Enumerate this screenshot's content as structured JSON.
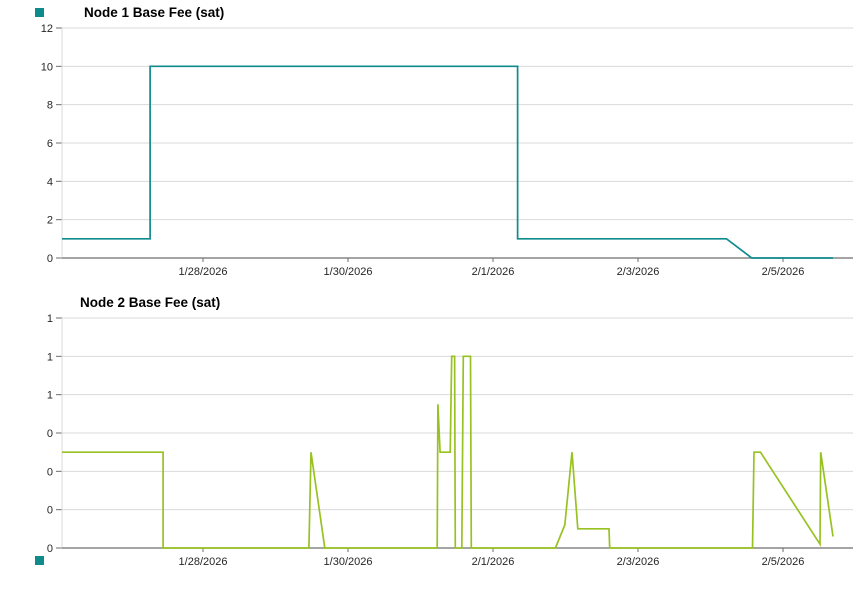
{
  "colors": {
    "node1_line": "#0f8b8c",
    "node2_line": "#98c222",
    "gridline": "#d9d9d9",
    "axis": "#6e6e6e",
    "tick_text": "#262626",
    "title_text": "#000000",
    "background": "#ffffff"
  },
  "chart_data": [
    {
      "type": "line",
      "title": "Node 1 Base Fee (sat)",
      "xlabel": "",
      "ylabel": "",
      "ylim": [
        0,
        12
      ],
      "x_unit": "days since 1/26/2026",
      "grid": "horizontal",
      "legend": "none",
      "swatch_color": "#0f8b8c",
      "y_ticks": [
        {
          "value": 0,
          "label": "0"
        },
        {
          "value": 2,
          "label": "2"
        },
        {
          "value": 4,
          "label": "4"
        },
        {
          "value": 6,
          "label": "6"
        },
        {
          "value": 8,
          "label": "8"
        },
        {
          "value": 10,
          "label": "10"
        },
        {
          "value": 12,
          "label": "12"
        }
      ],
      "x_ticks": [
        {
          "day": 2,
          "label": "1/28/2026"
        },
        {
          "day": 4,
          "label": "1/30/2026"
        },
        {
          "day": 6,
          "label": "2/1/2026"
        },
        {
          "day": 8,
          "label": "2/3/2026"
        },
        {
          "day": 10,
          "label": "2/5/2026"
        }
      ],
      "series": [
        {
          "name": "Node 1 Base Fee (sat)",
          "color": "#0f8b8c",
          "points": [
            [
              0.05,
              1
            ],
            [
              1.27,
              1
            ],
            [
              1.27,
              10
            ],
            [
              6.34,
              10
            ],
            [
              6.34,
              1
            ],
            [
              9.22,
              1
            ],
            [
              9.57,
              0
            ],
            [
              10.69,
              0
            ]
          ]
        }
      ]
    },
    {
      "type": "line",
      "title": "Node 2 Base Fee (sat)",
      "xlabel": "",
      "ylabel": "",
      "ylim": [
        0,
        1.2
      ],
      "x_unit": "days since 1/26/2026",
      "grid": "horizontal",
      "legend": "none",
      "swatch_color": "#0f8b8c",
      "y_ticks": [
        {
          "value": 0,
          "label": "0"
        },
        {
          "value": 0.2,
          "label": "0"
        },
        {
          "value": 0.4,
          "label": "0"
        },
        {
          "value": 0.6,
          "label": "0"
        },
        {
          "value": 0.8,
          "label": "1"
        },
        {
          "value": 1.0,
          "label": "1"
        },
        {
          "value": 1.2,
          "label": "1"
        }
      ],
      "x_ticks": [
        {
          "day": 2,
          "label": "1/28/2026"
        },
        {
          "day": 4,
          "label": "1/30/2026"
        },
        {
          "day": 6,
          "label": "2/1/2026"
        },
        {
          "day": 8,
          "label": "2/3/2026"
        },
        {
          "day": 10,
          "label": "2/5/2026"
        }
      ],
      "series": [
        {
          "name": "Node 2 Base Fee (sat)",
          "color": "#98c222",
          "points": [
            [
              0.05,
              0.5
            ],
            [
              1.45,
              0.5
            ],
            [
              1.45,
              0
            ],
            [
              3.46,
              0
            ],
            [
              3.49,
              0.5
            ],
            [
              3.68,
              0
            ],
            [
              5.23,
              0
            ],
            [
              5.24,
              0.75
            ],
            [
              5.27,
              0.5
            ],
            [
              5.41,
              0.5
            ],
            [
              5.43,
              1
            ],
            [
              5.47,
              1
            ],
            [
              5.48,
              0
            ],
            [
              5.57,
              0
            ],
            [
              5.59,
              1
            ],
            [
              5.69,
              1
            ],
            [
              5.7,
              0
            ],
            [
              6.86,
              0
            ],
            [
              6.99,
              0.12
            ],
            [
              7.09,
              0.5
            ],
            [
              7.17,
              0.1
            ],
            [
              7.6,
              0.1
            ],
            [
              7.61,
              0
            ],
            [
              9.58,
              0
            ],
            [
              9.6,
              0.5
            ],
            [
              9.69,
              0.5
            ],
            [
              10.51,
              0.02
            ],
            [
              10.52,
              0.5
            ],
            [
              10.69,
              0.06
            ]
          ]
        }
      ]
    }
  ]
}
